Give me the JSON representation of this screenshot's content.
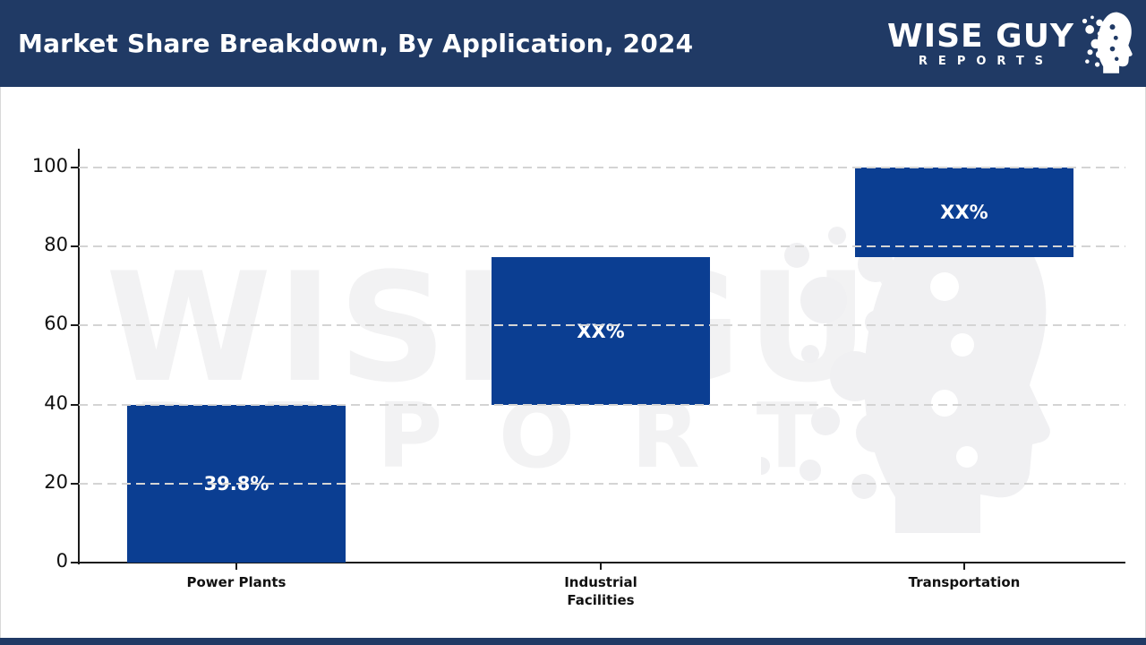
{
  "header": {
    "title": "Market Share Breakdown, By Application, 2024",
    "logo": {
      "brand_line1": "WISE GUY",
      "brand_line2": "REPORTS"
    }
  },
  "watermark": {
    "row1": "WISE GUY",
    "row2": "R E P O R T S"
  },
  "chart_data": {
    "type": "bar",
    "subtype": "waterfall-stacked-to-100",
    "title": "Market Share Breakdown, By Application, 2024",
    "categories": [
      [
        "Power Plants"
      ],
      [
        "Industrial",
        "Facilities"
      ],
      [
        "Transportation"
      ]
    ],
    "segments": [
      [
        0,
        39.8
      ],
      [
        39.8,
        77.4
      ],
      [
        77.4,
        100
      ]
    ],
    "values": [
      39.8,
      37.6,
      22.6
    ],
    "bar_labels": [
      "39.8%",
      "XX%",
      "XX%"
    ],
    "yticks": [
      0,
      20,
      40,
      60,
      80,
      100
    ],
    "ylim": [
      0,
      105
    ],
    "xlabel": "",
    "ylabel": "",
    "legend": "none",
    "grid": {
      "axis": "y",
      "style": "dashed"
    }
  },
  "colors": {
    "header_bg": "#203a65",
    "footer_bg": "#203a65",
    "bar_fill": "#0b3e92",
    "bar_label": "#ffffff",
    "grid_line": "#d4d4d4",
    "axis_line": "#1a1a1a",
    "tick_label": "#111111",
    "title_text": "#ffffff",
    "watermark": "#f2f2f3"
  },
  "icons": {
    "logo_head": "wiseguy-head-profile-icon",
    "watermark_head": "head-profile-watermark"
  }
}
